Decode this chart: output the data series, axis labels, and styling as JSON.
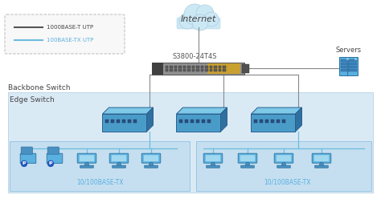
{
  "background_color": "#ffffff",
  "light_blue_bg": "#daeaf5",
  "client_bg": "#c5dff0",
  "legend_box_color": "#f8f8f8",
  "legend_border_color": "#bbbbbb",
  "line_black": "#555555",
  "line_blue": "#6bbde0",
  "text_dark": "#444444",
  "text_blue": "#5aafe0",
  "text_label": "#555555",
  "title_internet": "Internet",
  "title_backbone": "Backbone Switch",
  "title_edge": "Edge Switch",
  "label_switch": "S3800-24T4S",
  "label_servers": "Servers",
  "label_10_100": "10/100BASE-TX",
  "legend_line1": "1000BASE-T UTP",
  "legend_line2": "100BASE-TX UTP",
  "figsize": [
    4.74,
    2.48
  ],
  "dpi": 100
}
